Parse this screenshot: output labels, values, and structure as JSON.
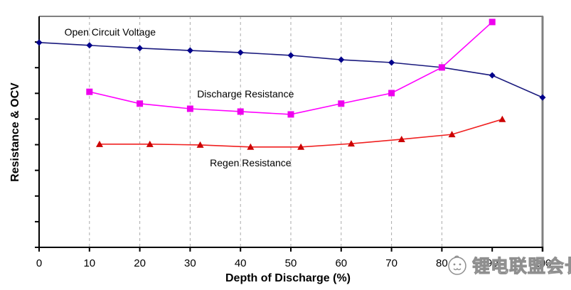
{
  "chart_data": {
    "type": "line",
    "title": "",
    "xlabel": "Depth of Discharge (%)",
    "ylabel": "Resistance & OCV",
    "xlim": [
      0,
      100
    ],
    "ylim": [
      0,
      9
    ],
    "x_ticks": [
      0,
      10,
      20,
      30,
      40,
      50,
      60,
      70,
      80,
      90,
      100
    ],
    "y_ticks_unlabeled_count": 9,
    "grid_x_dashed_at": [
      10,
      20,
      30,
      40,
      50,
      60,
      70,
      80
    ],
    "legend_position": "inline-labels",
    "axis_color": "#000000",
    "border_color": "#808080",
    "gridline_color": "#aaaaaa",
    "series": [
      {
        "name": "Open Circuit Voltage",
        "marker": "diamond",
        "line_color": "#1a1a7e",
        "marker_color": "#00008b",
        "x": [
          0,
          10,
          20,
          30,
          40,
          50,
          60,
          70,
          80,
          90,
          100
        ],
        "values": [
          7.98,
          7.87,
          7.76,
          7.67,
          7.59,
          7.48,
          7.31,
          7.2,
          7.01,
          6.7,
          5.84
        ]
      },
      {
        "name": "Discharge Resistance",
        "marker": "square",
        "line_color": "#ff00ff",
        "marker_color": "#ee00ee",
        "x": [
          10,
          20,
          30,
          40,
          50,
          60,
          70,
          80,
          90
        ],
        "values": [
          6.06,
          5.6,
          5.4,
          5.29,
          5.18,
          5.6,
          6.01,
          7.01,
          8.78
        ]
      },
      {
        "name": "Regen Resistance",
        "marker": "triangle",
        "line_color": "#f02020",
        "marker_color": "#cc0000",
        "x": [
          12,
          22,
          32,
          42,
          52,
          62,
          72,
          82,
          92
        ],
        "values": [
          4.02,
          4.02,
          3.99,
          3.91,
          3.91,
          4.04,
          4.21,
          4.4,
          4.99
        ]
      }
    ],
    "series_labels": [
      {
        "text": "Open Circuit Voltage",
        "x": 14.1,
        "y": 8.39
      },
      {
        "text": "Discharge Resistance",
        "x": 41.0,
        "y": 5.98
      },
      {
        "text": "Regen Resistance",
        "x": 42.0,
        "y": 3.3
      }
    ]
  },
  "watermark": {
    "text": "锂电联盟会长",
    "logo": "circular-face-logo"
  }
}
